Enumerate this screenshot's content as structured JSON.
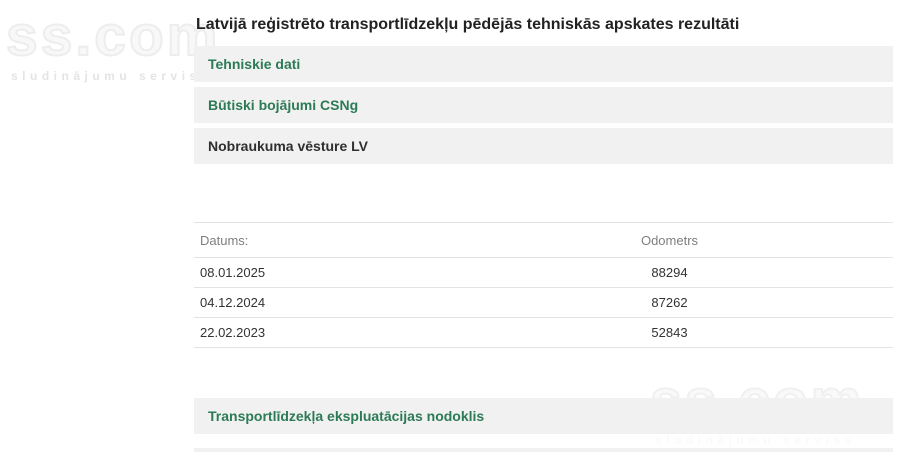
{
  "page": {
    "title": "Latvijā reģistrēto transportlīdzekļu pēdējās tehniskās apskates rezultāti"
  },
  "watermark": {
    "brand": "ss.com",
    "tagline": "sludinājumu serviss"
  },
  "accordion": {
    "items": [
      {
        "label": "Tehniskie dati"
      },
      {
        "label": "Būtiski bojājumi CSNg"
      },
      {
        "label": "Nobraukuma vēsture LV"
      }
    ]
  },
  "mileage_table": {
    "columns": [
      "Datums:",
      "Odometrs"
    ],
    "rows": [
      {
        "date": "08.01.2025",
        "odometer": "88294"
      },
      {
        "date": "04.12.2024",
        "odometer": "87262"
      },
      {
        "date": "22.02.2023",
        "odometer": "52843"
      }
    ]
  },
  "accordion_bottom": {
    "label": "Transportlīdzekļa ekspluatācijas nodoklis"
  },
  "colors": {
    "accent_green": "#2c7a56",
    "band_background": "#f1f1f1",
    "divider": "#e3e3e3"
  }
}
